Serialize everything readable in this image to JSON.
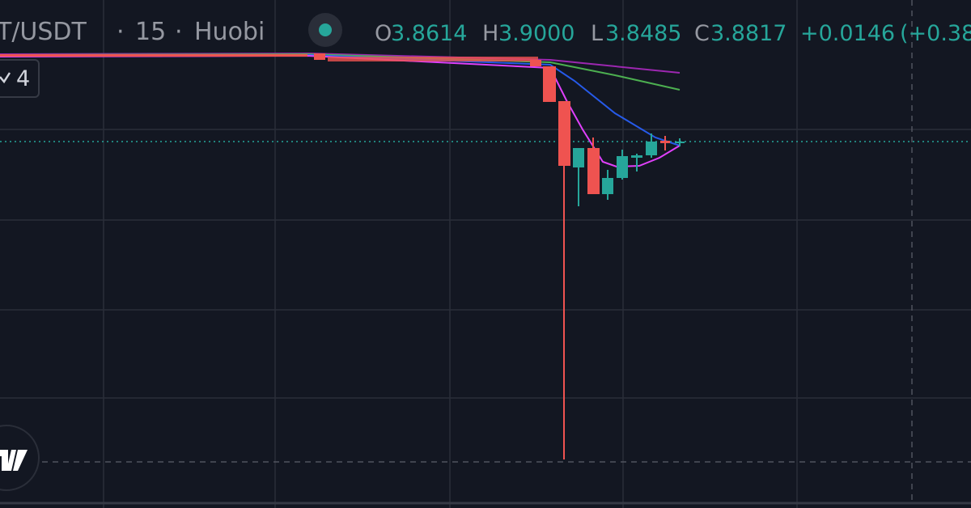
{
  "header": {
    "symbol": "T/USDT",
    "separator": "·",
    "interval": "15",
    "exchange": "Huobi"
  },
  "ohlc": {
    "open_label": "O",
    "open": "3.8614",
    "high_label": "H",
    "high": "3.9000",
    "low_label": "L",
    "low": "3.8485",
    "close_label": "C",
    "close": "3.8817",
    "change": "+0.0146",
    "change_percent": "(+0.38"
  },
  "indicator_toggle": {
    "count": "4"
  }
}
